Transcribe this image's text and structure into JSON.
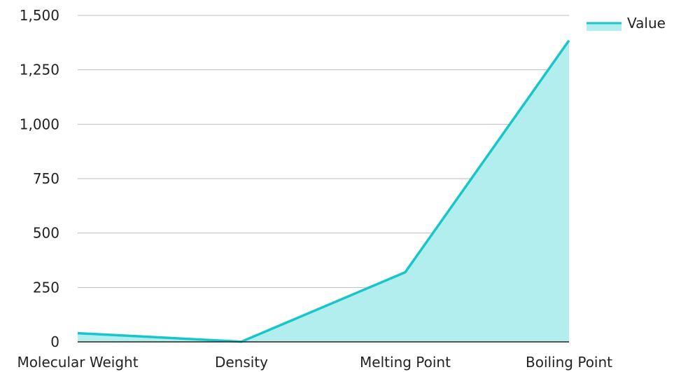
{
  "chart_data": {
    "type": "area",
    "categories": [
      "Molecular Weight",
      "Density",
      "Melting Point",
      "Boiling Point"
    ],
    "series": [
      {
        "name": "Value",
        "values": [
          40,
          1,
          320,
          1385
        ]
      }
    ],
    "ylim": [
      0,
      1500
    ],
    "yticks": [
      0,
      250,
      500,
      750,
      1000,
      1250,
      1500
    ],
    "ytick_labels": [
      "0",
      "250",
      "500",
      "750",
      "1,000",
      "1,250",
      "1,500"
    ],
    "grid": true,
    "legend_position": "top-right",
    "colors": {
      "line": "#17c6c9",
      "fill": "#b2eeed",
      "grid": "#bdbdbd",
      "axis": "#222222"
    }
  }
}
